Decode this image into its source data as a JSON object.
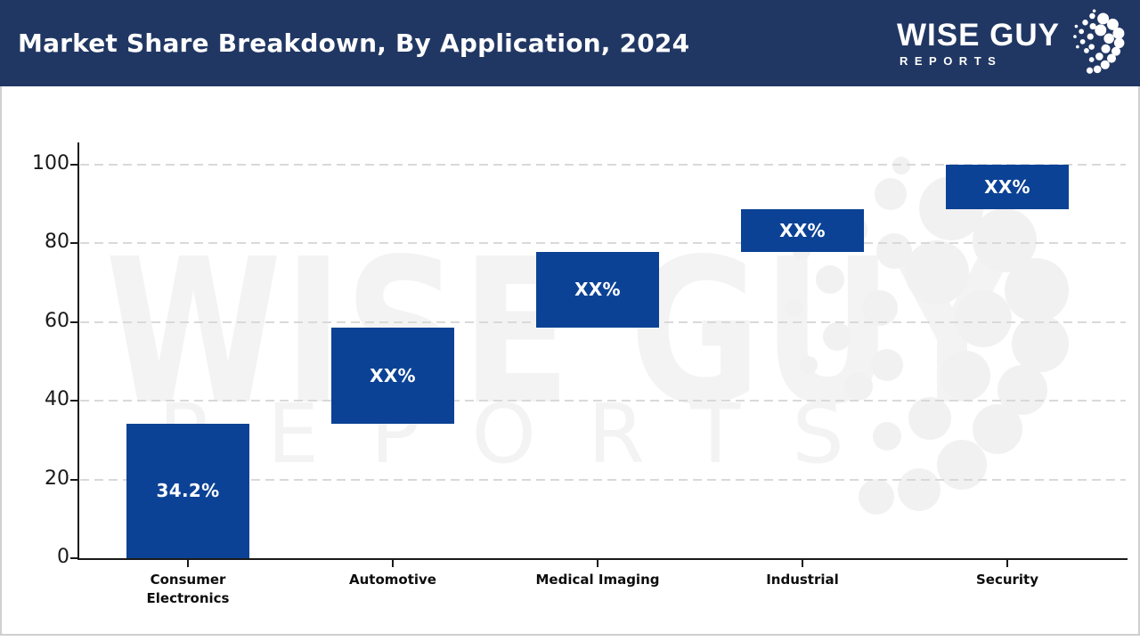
{
  "header": {
    "title": "Market Share Breakdown, By Application, 2024",
    "background_color": "#213763",
    "logo": {
      "name": "WISE GUY",
      "tagline": "REPORTS"
    }
  },
  "watermark": {
    "line1": "WISE GUY",
    "line2": "REPORTS"
  },
  "chart_data": {
    "type": "bar",
    "variant": "waterfall",
    "title": "Market Share Breakdown, By Application, 2024",
    "categories": [
      "Consumer Electronics",
      "Automotive",
      "Medical Imaging",
      "Industrial",
      "Security"
    ],
    "segments": [
      {
        "category": "Consumer Electronics",
        "start": 0,
        "end": 34.2,
        "label": "34.2%"
      },
      {
        "category": "Automotive",
        "start": 34.2,
        "end": 58.7,
        "label": "XX%"
      },
      {
        "category": "Medical Imaging",
        "start": 58.7,
        "end": 77.9,
        "label": "XX%"
      },
      {
        "category": "Industrial",
        "start": 77.9,
        "end": 88.8,
        "label": "XX%"
      },
      {
        "category": "Security",
        "start": 88.8,
        "end": 100,
        "label": "XX%"
      }
    ],
    "bar_color": "#0b4295",
    "bar_label_color": "#ffffff",
    "xlabel": "",
    "ylabel": "",
    "ylim": [
      0,
      100
    ],
    "yticks": [
      0,
      20,
      40,
      60,
      80,
      100
    ],
    "grid": "horizontal-dashed",
    "legend": false
  }
}
